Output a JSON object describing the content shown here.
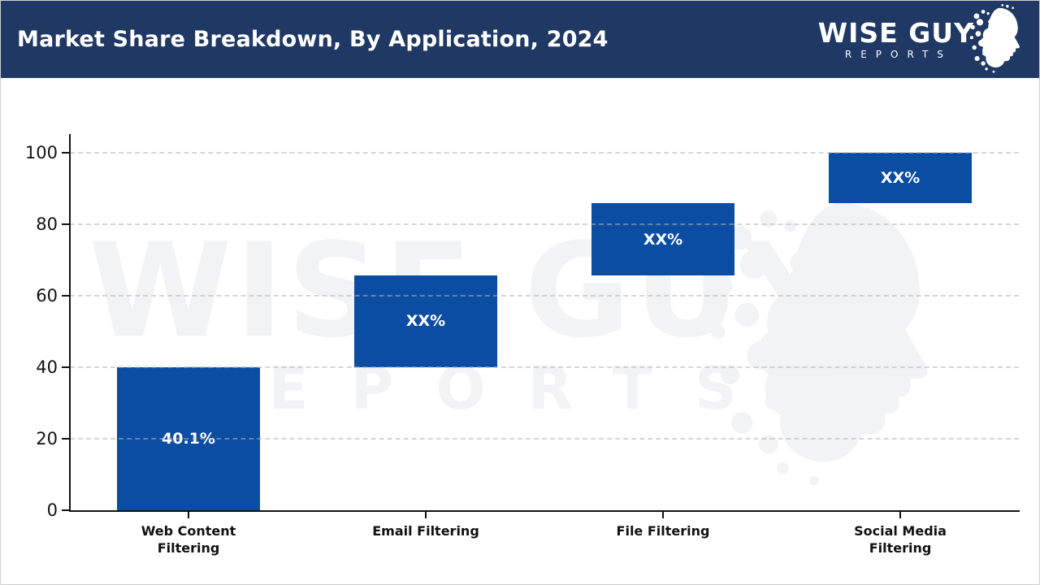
{
  "header": {
    "title": "Market Share Breakdown, By Application, 2024",
    "logo": {
      "line1": "WISE GUY",
      "line2": "REPORTS"
    }
  },
  "watermark": {
    "line1": "WISE GUY",
    "line2": "REPORTS"
  },
  "theme": {
    "header_bg": "#1f3864",
    "bar_color": "#0b4da2",
    "watermark_color": "#f2f3f5"
  },
  "chart_data": {
    "type": "bar",
    "subtype": "waterfall",
    "title": "Market Share Breakdown, By Application, 2024",
    "categories": [
      "Web Content Filtering",
      "Email Filtering",
      "File Filtering",
      "Social Media Filtering"
    ],
    "category_lines": [
      [
        "Web Content",
        "Filtering"
      ],
      [
        "Email Filtering"
      ],
      [
        "File Filtering"
      ],
      [
        "Social Media",
        "Filtering"
      ]
    ],
    "segments": [
      {
        "name": "Web Content Filtering",
        "start": 0,
        "end": 40.1,
        "label": "40.1%"
      },
      {
        "name": "Email Filtering",
        "start": 40.1,
        "end": 65.6,
        "label": "XX%"
      },
      {
        "name": "File Filtering",
        "start": 65.6,
        "end": 85.8,
        "label": "XX%"
      },
      {
        "name": "Social Media Filtering",
        "start": 85.8,
        "end": 100,
        "label": "XX%"
      }
    ],
    "y_ticks": [
      0,
      20,
      40,
      60,
      80,
      100
    ],
    "ylim": [
      0,
      100
    ],
    "xlabel": "",
    "ylabel": "",
    "grid": "horizontal-dashed",
    "legend": "none",
    "bar_label_color": "#ffffff"
  }
}
